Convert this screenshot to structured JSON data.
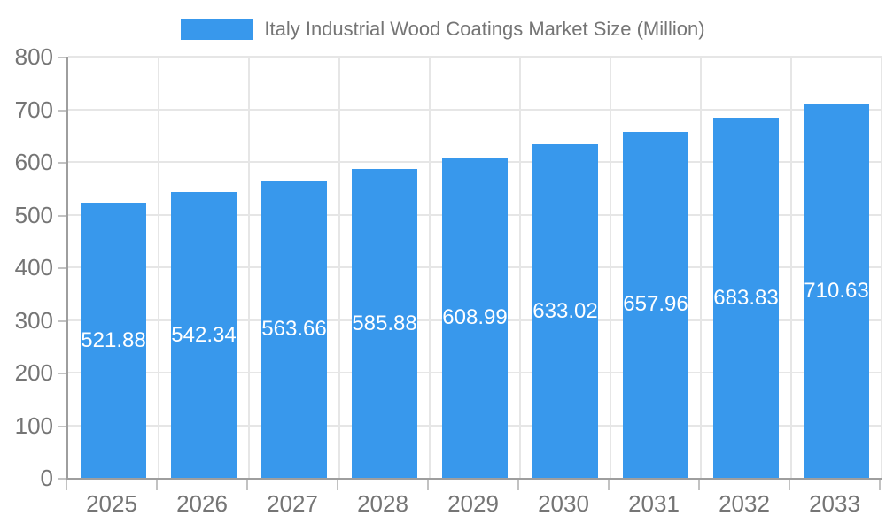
{
  "chart_data": {
    "type": "bar",
    "title": "Italy Industrial Wood Coatings Market Size (Million)",
    "categories": [
      "2025",
      "2026",
      "2027",
      "2028",
      "2029",
      "2030",
      "2031",
      "2032",
      "2033"
    ],
    "series": [
      {
        "name": "Italy Industrial Wood Coatings Market Size (Million)",
        "values": [
          521.88,
          542.34,
          563.66,
          585.88,
          608.99,
          633.02,
          657.96,
          683.83,
          710.63
        ]
      }
    ],
    "value_labels": [
      "521.88",
      "542.34",
      "563.66",
      "585.88",
      "608.99",
      "633.02",
      "657.96",
      "683.83",
      "710.63"
    ],
    "xlabel": "",
    "ylabel": "",
    "ylim": [
      0,
      800
    ],
    "yticks": [
      0,
      100,
      200,
      300,
      400,
      500,
      600,
      700,
      800
    ],
    "grid": true,
    "legend_position": "top-center",
    "colors": {
      "bar": "#3898EC",
      "axis_line": "#9e9e9e",
      "gridline": "#e6e6e6",
      "tick": "#c2c2c2",
      "axis_text": "#757575",
      "bar_label_text": "#ffffff",
      "background": "#ffffff"
    }
  }
}
